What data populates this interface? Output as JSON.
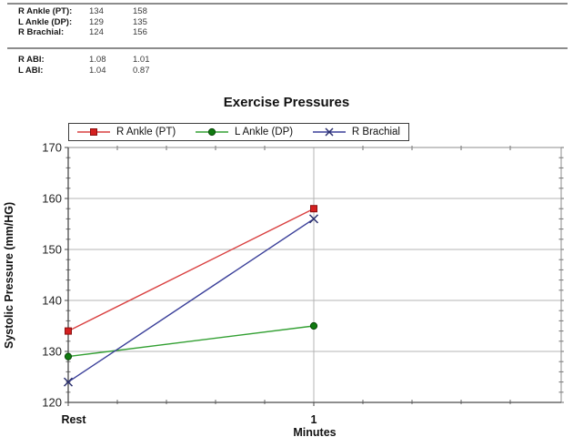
{
  "pressure_table": {
    "rows": [
      {
        "label": "R Ankle (PT):",
        "rest": "134",
        "minute1": "158"
      },
      {
        "label": "L Ankle (DP):",
        "rest": "129",
        "minute1": "135"
      },
      {
        "label": "R Brachial:",
        "rest": "124",
        "minute1": "156"
      }
    ]
  },
  "abi_table": {
    "rows": [
      {
        "label": "R ABI:",
        "rest": "1.08",
        "minute1": "1.01"
      },
      {
        "label": "L ABI:",
        "rest": "1.04",
        "minute1": "0.87"
      }
    ]
  },
  "chart_data": {
    "type": "line",
    "title": "Exercise Pressures",
    "xlabel": "Minutes",
    "ylabel": "Systolic Pressure (mm/HG)",
    "categories": [
      "Rest",
      "1"
    ],
    "series": [
      {
        "name": "R Ankle (PT)",
        "values": [
          134,
          158
        ],
        "color": "#d94040",
        "marker": "square",
        "marker_fill": "#d42020",
        "marker_stroke": "#8a1010"
      },
      {
        "name": "L Ankle (DP)",
        "values": [
          129,
          135
        ],
        "color": "#33a033",
        "marker": "circle",
        "marker_fill": "#0f7a0f",
        "marker_stroke": "#074607"
      },
      {
        "name": "R Brachial",
        "values": [
          124,
          156
        ],
        "color": "#3a3f99",
        "marker": "x",
        "marker_fill": "#2a2f6e",
        "marker_stroke": "#2a2f6e"
      }
    ],
    "ylim": [
      120,
      170
    ],
    "ytick_step": 10,
    "grid": true,
    "legend_position": "top",
    "colors": {
      "gridline": "#b4b4b4",
      "axis_dark": "#4a4a4a",
      "axis_light": "#8c8c8c",
      "tick": "#6e6e6e",
      "tick_label": "#222222"
    }
  }
}
